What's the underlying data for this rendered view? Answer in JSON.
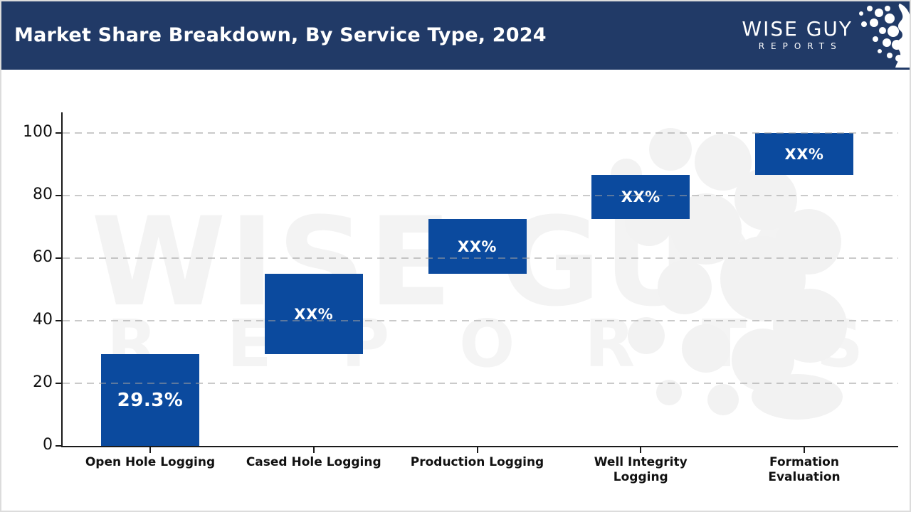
{
  "header": {
    "title": "Market Share Breakdown, By Service Type, 2024",
    "logo": {
      "name": "WISE GUY",
      "subtitle": "REPORTS"
    }
  },
  "watermark": {
    "line1": "WISE GUY",
    "line2": "REPORTS"
  },
  "colors": {
    "header_bg": "#213a67",
    "bar_blue": "#0b4a9e",
    "grid_gray": "#d9d9d9",
    "watermark_gray": "#f3f3f3"
  },
  "chart_data": {
    "type": "bar",
    "subtype": "waterfall",
    "title": "Market Share Breakdown, By Service Type, 2024",
    "categories": [
      "Open Hole Logging",
      "Cased Hole Logging",
      "Production Logging",
      "Well Integrity\nLogging",
      "Formation\nEvaluation"
    ],
    "bars": [
      {
        "category": "Open Hole Logging",
        "start": 0,
        "end": 29.3,
        "label": "29.3%"
      },
      {
        "category": "Cased Hole Logging",
        "start": 29.3,
        "end": 55,
        "label": "XX%"
      },
      {
        "category": "Production Logging",
        "start": 55,
        "end": 72.5,
        "label": "XX%"
      },
      {
        "category": "Well Integrity Logging",
        "start": 72.5,
        "end": 86.5,
        "label": "XX%"
      },
      {
        "category": "Formation Evaluation",
        "start": 86.5,
        "end": 100,
        "label": "XX%"
      }
    ],
    "xlabel": "",
    "ylabel": "",
    "ylim": [
      0,
      100
    ],
    "yticks": [
      0,
      20,
      40,
      60,
      80,
      100
    ],
    "grid": true,
    "grid_style": "dashed",
    "legend": false,
    "bar_color": "#0b4a9e",
    "bar_label_color": "#ffffff"
  }
}
